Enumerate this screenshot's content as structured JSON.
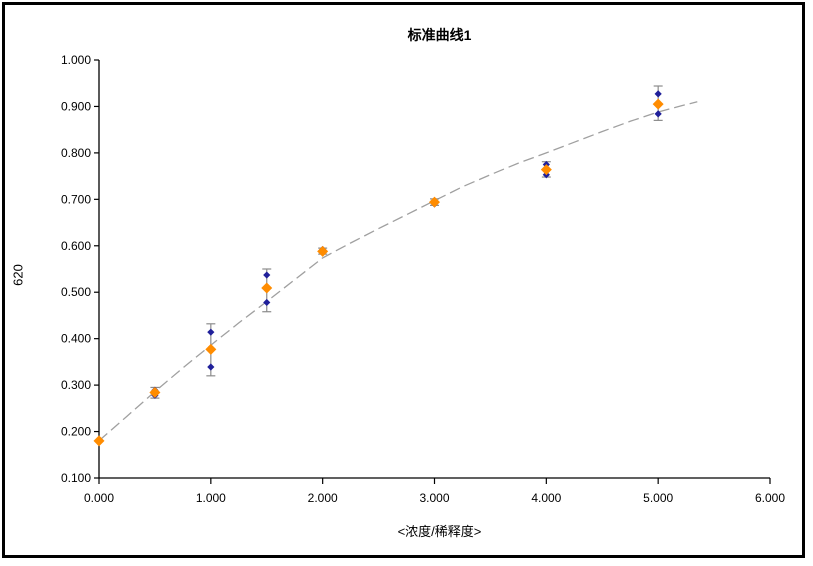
{
  "window": {
    "background": "#FFFFFF",
    "frame_color": "#000000"
  },
  "chart_data": {
    "type": "scatter",
    "title": "标准曲线1",
    "xlabel": "<浓度/稀释度>",
    "ylabel": "620",
    "xlim": [
      0.0,
      6.0
    ],
    "ylim": [
      0.1,
      1.0
    ],
    "grid": false,
    "legend_position": "none",
    "x_ticks": {
      "values": [
        0,
        1,
        2,
        3,
        4,
        5,
        6
      ],
      "labels": [
        "0.000",
        "1.000",
        "2.000",
        "3.000",
        "4.000",
        "5.000",
        "6.000"
      ]
    },
    "y_ticks": {
      "values": [
        0.1,
        0.2,
        0.3,
        0.4,
        0.5,
        0.6,
        0.7,
        0.8,
        0.9,
        1.0
      ],
      "labels": [
        "0.100",
        "0.200",
        "0.300",
        "0.400",
        "0.500",
        "0.600",
        "0.700",
        "0.800",
        "0.900",
        "1.000"
      ]
    },
    "series": [
      {
        "name": "fit-curve",
        "type": "line",
        "style": "dashed",
        "color": "#A0A0A0",
        "x": [
          0,
          0.25,
          0.5,
          0.75,
          1,
          1.25,
          1.5,
          1.75,
          2,
          2.25,
          2.5,
          2.75,
          3,
          3.25,
          3.5,
          3.75,
          4,
          4.25,
          4.5,
          4.75,
          5,
          5.2,
          5.35
        ],
        "y": [
          0.18,
          0.233,
          0.286,
          0.337,
          0.386,
          0.434,
          0.48,
          0.527,
          0.574,
          0.606,
          0.637,
          0.667,
          0.697,
          0.727,
          0.753,
          0.778,
          0.8,
          0.823,
          0.846,
          0.868,
          0.888,
          0.901,
          0.91
        ]
      },
      {
        "name": "error-bars",
        "type": "errorbar",
        "color": "#8C8C8C",
        "bars": [
          [
            0.5,
            0.272,
            0.295
          ],
          [
            1.0,
            0.32,
            0.432
          ],
          [
            1.5,
            0.458,
            0.55
          ],
          [
            2.0,
            0.582,
            0.595
          ],
          [
            3.0,
            0.687,
            0.701
          ],
          [
            4.0,
            0.748,
            0.781
          ],
          [
            5.0,
            0.87,
            0.944
          ]
        ]
      },
      {
        "name": "replicates",
        "type": "scatter",
        "marker": "small-diamond",
        "color": "#20209A",
        "points": [
          [
            0.0,
            0.18
          ],
          [
            0.0,
            0.18
          ],
          [
            0.5,
            0.289
          ],
          [
            0.5,
            0.278
          ],
          [
            1.0,
            0.414
          ],
          [
            1.0,
            0.339
          ],
          [
            1.5,
            0.537
          ],
          [
            1.5,
            0.478
          ],
          [
            2.0,
            0.592
          ],
          [
            2.0,
            0.585
          ],
          [
            3.0,
            0.697
          ],
          [
            3.0,
            0.69
          ],
          [
            4.0,
            0.775
          ],
          [
            4.0,
            0.753
          ],
          [
            5.0,
            0.927
          ],
          [
            5.0,
            0.884
          ]
        ]
      },
      {
        "name": "standard-mean",
        "type": "scatter",
        "marker": "diamond",
        "color": "#FF8C00",
        "points": [
          [
            0.0,
            0.18
          ],
          [
            0.5,
            0.284
          ],
          [
            1.0,
            0.377
          ],
          [
            1.5,
            0.509
          ],
          [
            2.0,
            0.588
          ],
          [
            3.0,
            0.694
          ],
          [
            4.0,
            0.764
          ],
          [
            5.0,
            0.905
          ]
        ]
      }
    ]
  }
}
